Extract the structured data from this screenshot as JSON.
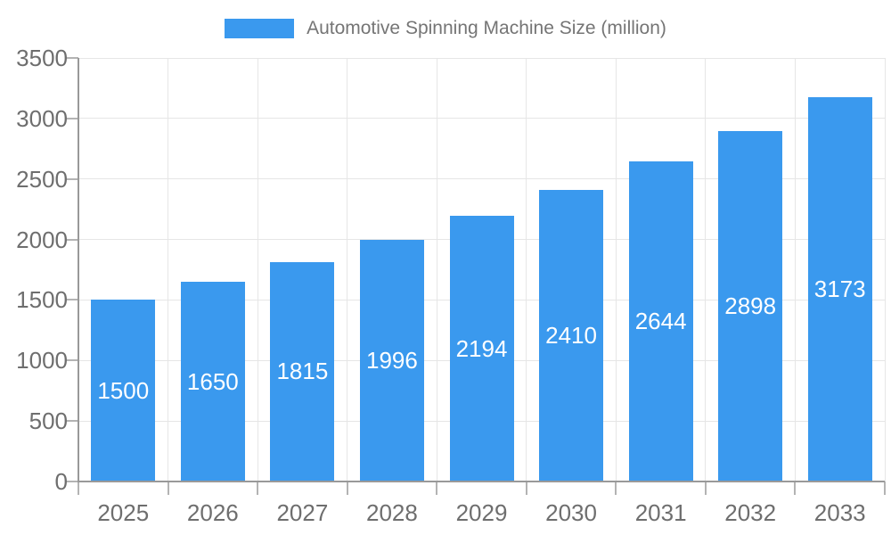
{
  "legend": {
    "label": "Automotive Spinning Machine Size (million)",
    "swatch_color": "#3A99EE"
  },
  "chart_data": {
    "type": "bar",
    "title": "Automotive Spinning Machine Size (million)",
    "categories": [
      "2025",
      "2026",
      "2027",
      "2028",
      "2029",
      "2030",
      "2031",
      "2032",
      "2033"
    ],
    "series": [
      {
        "name": "Automotive Spinning Machine Size (million)",
        "values": [
          1500,
          1650,
          1815,
          1996,
          2194,
          2410,
          2644,
          2898,
          3173
        ]
      }
    ],
    "xlabel": "",
    "ylabel": "",
    "ylim": [
      0,
      3500
    ],
    "yticks": [
      0,
      500,
      1000,
      1500,
      2000,
      2500,
      3000,
      3500
    ],
    "grid": true,
    "legend_position": "top",
    "bar_color": "#3A99EE",
    "bar_label_color": "#ffffff"
  },
  "colors": {
    "grid": "#e6e6e6",
    "axis": "#999999",
    "tick": "#b3b3b3",
    "axis_text": "#6e6e6e",
    "legend_text": "#757575",
    "background": "#ffffff"
  }
}
